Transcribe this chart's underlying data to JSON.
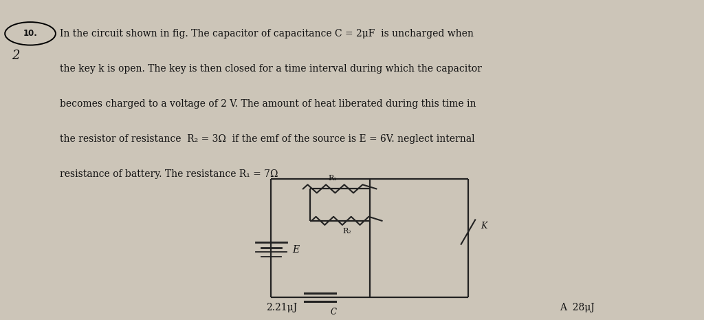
{
  "background_color": "#ccc5b8",
  "text_color": "#111111",
  "line1": "In the circuit shown in fig. The capacitor of capacitance C = 2μF  is uncharged when",
  "line2": "the key k is open. The key is then closed for a time interval during which the capacitor",
  "line3": "becomes charged to a voltage of 2 V. The amount of heat liberated during this time in",
  "line4": "the resistor of resistance  R₂ = 3Ω  if the emf of the source is E = 6V. neglect internal",
  "line5": "resistance of battery. The resistance R₁ = 7Ω",
  "ans1": "2.21μJ",
  "ans2": "A  28μJ",
  "wire_color": "#222222",
  "circuit_L": 0.385,
  "circuit_R": 0.665,
  "circuit_B": 0.07,
  "circuit_T": 0.44,
  "circuit_M": 0.525
}
